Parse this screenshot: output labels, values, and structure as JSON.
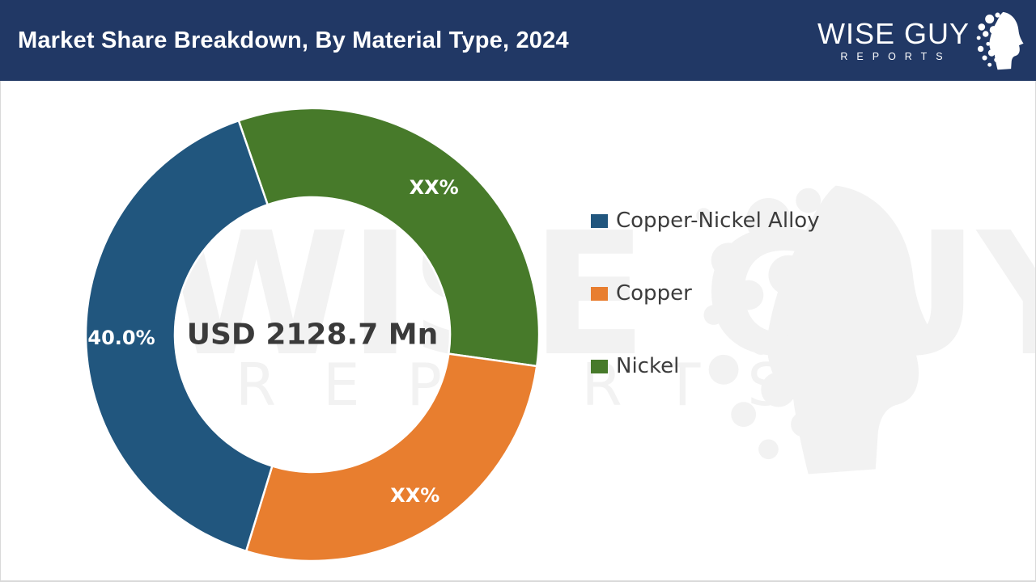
{
  "header": {
    "title": "Market Share Breakdown, By Material Type, 2024",
    "logo": {
      "line1": "WISE GUY",
      "line2": "REPORTS"
    }
  },
  "watermark": {
    "line1": "WISE GUY",
    "line2": "REPORTS"
  },
  "chart_data": {
    "type": "donut",
    "title": "Market Share Breakdown, By Material Type, 2024",
    "center_label": "USD 2128.7 Mn",
    "legend_position": "right",
    "segments": [
      {
        "name": "Copper-Nickel Alloy",
        "label": "40.0%",
        "value": 40.0,
        "color": "#21567e"
      },
      {
        "name": "Copper",
        "label": "XX%",
        "value": 27.5,
        "color": "#e87e2f"
      },
      {
        "name": "Nickel",
        "label": "XX%",
        "value": 32.5,
        "color": "#477a2a"
      }
    ],
    "values_note": "XX% slice values estimated from arc angles; 40.0% shown on chart",
    "start_angle_from_top_deg": -19,
    "direction": "clockwise",
    "draw_order": [
      2,
      1,
      0
    ]
  },
  "colors": {
    "header_bg": "#213865",
    "text_dark": "#3a3a3a",
    "watermark": "#f2f2f2",
    "border": "#d9d9d9",
    "label_text": "#ffffff"
  }
}
